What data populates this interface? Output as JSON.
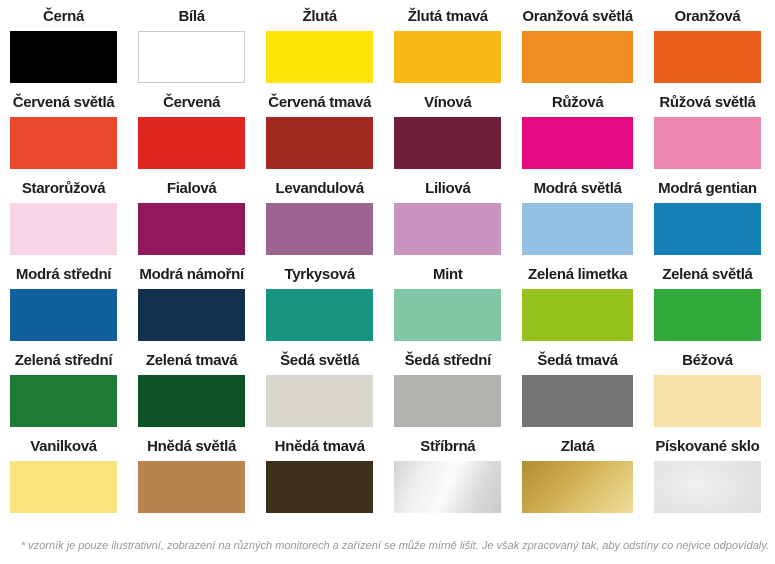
{
  "footer": {
    "note": "* vzorník je pouze ilustrativní, zobrazení na různých monitorech a zařízení se může mírně lišit. Je však zpracovaný tak, aby odstíny co nejvice odpovídaly."
  },
  "palette": {
    "label_color": "#1d1d1b",
    "swatches": [
      {
        "id": "cerna",
        "label": "Černá",
        "colors": [
          "#000000"
        ]
      },
      {
        "id": "bila",
        "label": "Bílá",
        "colors": [
          "#ffffff"
        ],
        "border": "#c9c9c9"
      },
      {
        "id": "zluta",
        "label": "Žlutá",
        "colors": [
          "#ffe60a"
        ]
      },
      {
        "id": "zluta-tmava",
        "label": "Žlutá tmavá",
        "colors": [
          "#f9b816"
        ]
      },
      {
        "id": "oranzova-svetla",
        "label": "Oranžová světlá",
        "colors": [
          "#ef8d22"
        ]
      },
      {
        "id": "oranzova",
        "label": "Oranžová",
        "colors": [
          "#e8601c"
        ]
      },
      {
        "id": "cervena-svetla",
        "label": "Červená světlá",
        "colors": [
          "#e94a2e"
        ]
      },
      {
        "id": "cervena",
        "label": "Červená",
        "colors": [
          "#df2721"
        ]
      },
      {
        "id": "cervena-tmava",
        "label": "Červená tmavá",
        "colors": [
          "#a12b22"
        ]
      },
      {
        "id": "vinova",
        "label": "Vínová",
        "colors": [
          "#701f3a"
        ]
      },
      {
        "id": "ruzova",
        "label": "Růžová",
        "colors": [
          "#e50a80"
        ]
      },
      {
        "id": "ruzova-svetla",
        "label": "Růžová světlá",
        "colors": [
          "#ee87b0"
        ]
      },
      {
        "id": "staroruzova",
        "label": "Starorůžová",
        "colors": [
          "#f7d4e6"
        ]
      },
      {
        "id": "fialova",
        "label": "Fialová",
        "colors": [
          "#90195b"
        ]
      },
      {
        "id": "levandulova",
        "label": "Levandulová",
        "colors": [
          "#9b6590"
        ]
      },
      {
        "id": "liliova",
        "label": "Liliová",
        "colors": [
          "#c795bd"
        ]
      },
      {
        "id": "modra-svetla",
        "label": "Modrá světlá",
        "colors": [
          "#94c0e4"
        ]
      },
      {
        "id": "modra-gentian",
        "label": "Modrá gentian",
        "colors": [
          "#1580b5"
        ]
      },
      {
        "id": "modra-stredni",
        "label": "Modrá střední",
        "colors": [
          "#10609b"
        ]
      },
      {
        "id": "modra-namorni",
        "label": "Modrá námořní",
        "colors": [
          "#13304f"
        ]
      },
      {
        "id": "tyrkysova",
        "label": "Tyrkysová",
        "colors": [
          "#17947f"
        ]
      },
      {
        "id": "mint",
        "label": "Mint",
        "colors": [
          "#80c7a7"
        ]
      },
      {
        "id": "zelena-limetka",
        "label": "Zelená limetka",
        "colors": [
          "#94c11e"
        ]
      },
      {
        "id": "zelena-svetla",
        "label": "Zelená světlá",
        "colors": [
          "#2fa93a"
        ]
      },
      {
        "id": "zelena-stredni",
        "label": "Zelená střední",
        "colors": [
          "#1e7b36"
        ]
      },
      {
        "id": "zelena-tmava",
        "label": "Zelená tmavá",
        "colors": [
          "#0e5126"
        ]
      },
      {
        "id": "seda-svetla",
        "label": "Šedá světlá",
        "colors": [
          "#d9d6ce"
        ]
      },
      {
        "id": "seda-stredni",
        "label": "Šedá střední",
        "colors": [
          "#b4b2ae"
        ]
      },
      {
        "id": "seda-tmava",
        "label": "Šedá tmavá",
        "colors": [
          "#777573"
        ]
      },
      {
        "id": "bezova",
        "label": "Béžová",
        "colors": [
          "#f6e0a6"
        ]
      },
      {
        "id": "vanilkova",
        "label": "Vanilková",
        "colors": [
          "#f8e37c"
        ]
      },
      {
        "id": "hneda-svetla",
        "label": "Hnědá světlá",
        "colors": [
          "#b7834f"
        ]
      },
      {
        "id": "hneda-tmava",
        "label": "Hnědá tmavá",
        "colors": [
          "#3f301d"
        ]
      },
      {
        "id": "stribrna",
        "label": "Stříbrná",
        "colors": [
          "#d2d3d5",
          "#eeeff0",
          "#fbfbfc",
          "#dadbdd",
          "#c9cacc"
        ],
        "gradient_angle": "115deg"
      },
      {
        "id": "zlata",
        "label": "Zlatá",
        "colors": [
          "#b28e33",
          "#c9a647",
          "#dfc470",
          "#eddc9c"
        ],
        "gradient_angle": "135deg"
      },
      {
        "id": "piskovane-sklo",
        "label": "Pískované sklo",
        "colors": [
          "#eff0f1",
          "#e3e4e6",
          "#d5d6d8"
        ],
        "gradient_type": "radial"
      }
    ]
  }
}
